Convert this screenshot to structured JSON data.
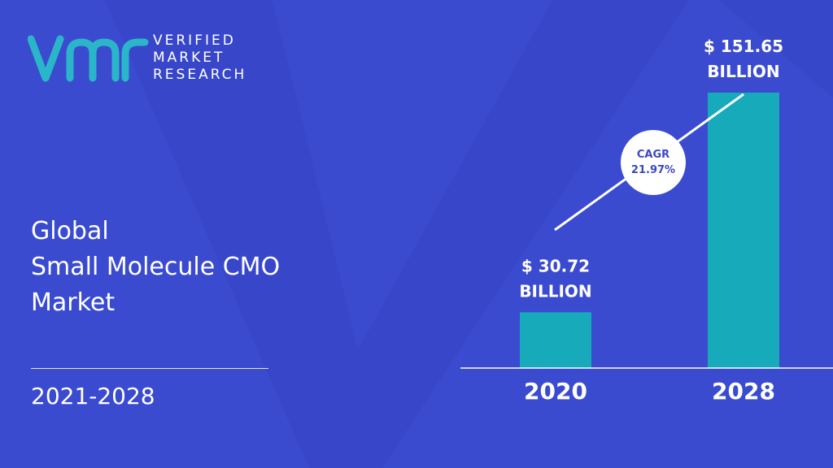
{
  "logo": {
    "mark": "vmr",
    "line1": "VERIFIED",
    "line2": "MARKET",
    "line3": "RESEARCH",
    "accent": "#2ab6c8"
  },
  "title": {
    "line1": "Global",
    "line2": "Small Molecule CMO",
    "line3": "Market"
  },
  "period": "2021-2028",
  "colors": {
    "background": "#3a4bd0",
    "bar": "#17aabb",
    "text": "#ffffff"
  },
  "chart_data": {
    "type": "bar",
    "categories": [
      "2020",
      "2028"
    ],
    "values": [
      30.72,
      151.65
    ],
    "value_labels": [
      [
        "$ 30.72",
        "BILLION"
      ],
      [
        "$ 151.65",
        "BILLION"
      ]
    ],
    "unit": "BILLION",
    "cagr_label": "CAGR",
    "cagr_value": "21.97%",
    "ylim": [
      0,
      151.65
    ]
  }
}
